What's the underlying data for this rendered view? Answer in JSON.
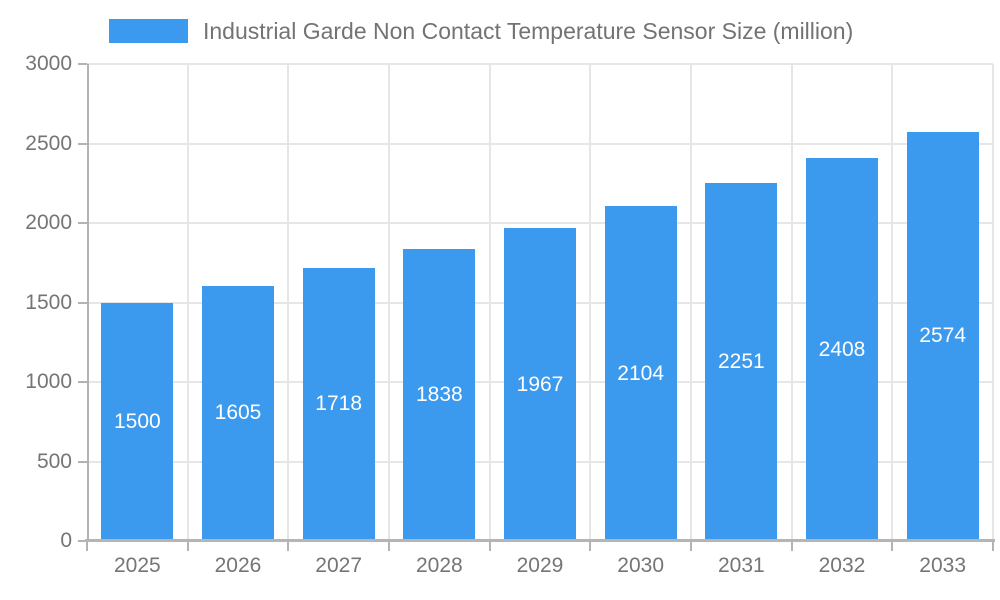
{
  "legend": {
    "label": "Industrial Garde Non Contact Temperature Sensor Size (million)"
  },
  "colors": {
    "bar": "#3b99ee",
    "grid": "#e6e6e6",
    "axis": "#b3b3b3",
    "tick_text": "#757575",
    "bar_label_text": "#ffffff",
    "background": "#ffffff"
  },
  "chart_data": {
    "type": "bar",
    "title": "Industrial Garde Non Contact Temperature Sensor Size (million)",
    "categories": [
      "2025",
      "2026",
      "2027",
      "2028",
      "2029",
      "2030",
      "2031",
      "2032",
      "2033"
    ],
    "values": [
      1500,
      1605,
      1718,
      1838,
      1967,
      2104,
      2251,
      2408,
      2574
    ],
    "xlabel": "",
    "ylabel": "",
    "ylim": [
      0,
      3000
    ],
    "yticks": [
      0,
      500,
      1000,
      1500,
      2000,
      2500,
      3000
    ],
    "grid": true,
    "legend_position": "top-left",
    "value_labels": "inside-center",
    "bar_color": "#3b99ee"
  }
}
